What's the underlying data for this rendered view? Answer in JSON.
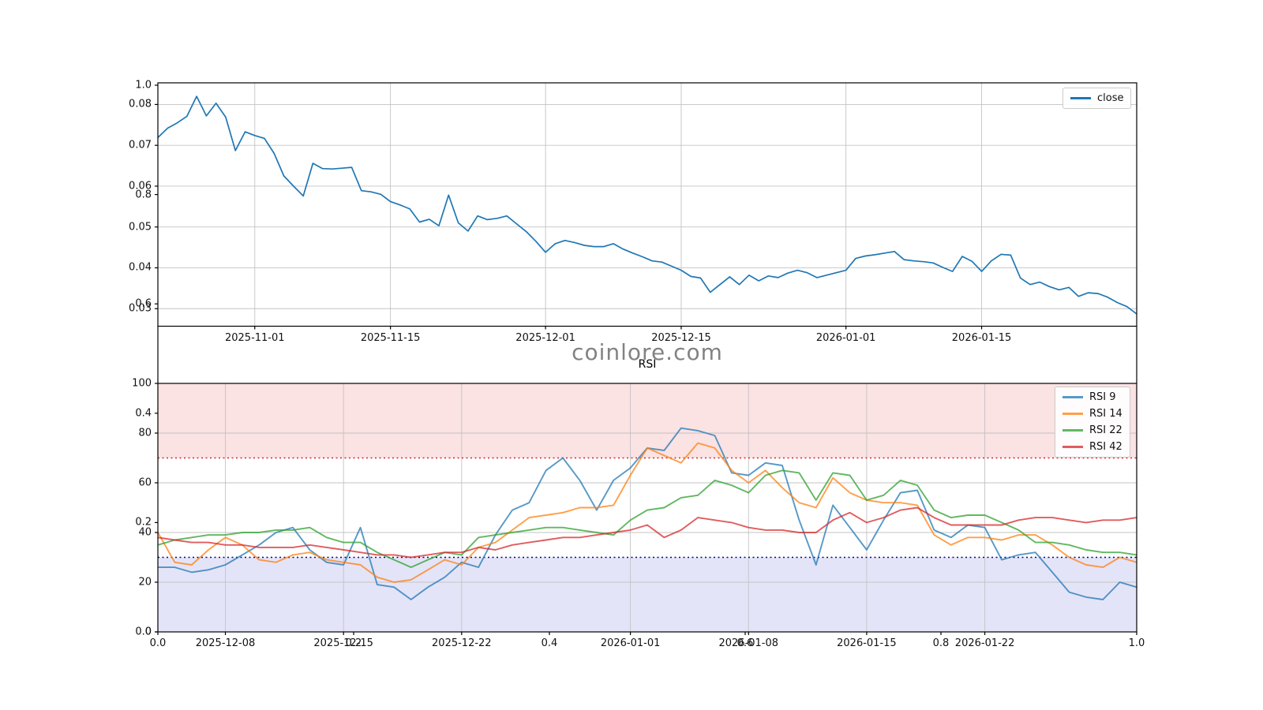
{
  "watermark": {
    "text": "coinlore.com"
  },
  "figure": {
    "background": "#ffffff",
    "grid_color": "#c3c3c3",
    "spine_color": "#000000",
    "overbought_band_color": "#fbe2e3",
    "oversold_band_color": "#e4e4f8",
    "overbought_line_color": "#d62728",
    "oversold_line_color": "#00008b"
  },
  "overlay_axis": {
    "xticks": [
      "0.0",
      "0.2",
      "0.4",
      "0.6",
      "0.8",
      "1.0"
    ],
    "yticks": [
      "1.0",
      "0.8",
      "0.6",
      "0.4",
      "0.2",
      "0.0"
    ]
  },
  "chart_data": [
    {
      "name": "price",
      "type": "line",
      "title": "",
      "xlabel": "",
      "ylabel": "",
      "legend_position": "upper right",
      "grid": true,
      "ylim": [
        0.0257,
        0.0853
      ],
      "ytick_values": [
        0.08,
        0.07,
        0.06,
        0.05,
        0.04,
        0.03
      ],
      "ytick_labels": [
        "0.08",
        "0.07",
        "0.06",
        "0.05",
        "0.04",
        "0.03"
      ],
      "xtick_labels": [
        "2025-11-01",
        "2025-11-15",
        "2025-12-01",
        "2025-12-15",
        "2026-01-01",
        "2026-01-15"
      ],
      "xtick_indices": [
        10,
        24,
        40,
        54,
        71,
        85
      ],
      "series": [
        {
          "name": "close",
          "color": "#1f77b4",
          "alpha": 1,
          "values": [
            0.0719,
            0.0742,
            0.0755,
            0.0771,
            0.082,
            0.0772,
            0.0803,
            0.0769,
            0.0687,
            0.0733,
            0.0724,
            0.0717,
            0.068,
            0.0625,
            0.06,
            0.0576,
            0.0656,
            0.0643,
            0.0642,
            0.0644,
            0.0646,
            0.0589,
            0.0586,
            0.058,
            0.0562,
            0.0554,
            0.0544,
            0.0512,
            0.0519,
            0.0503,
            0.0578,
            0.051,
            0.049,
            0.0527,
            0.0518,
            0.0521,
            0.0527,
            0.0508,
            0.0489,
            0.0465,
            0.0438,
            0.0459,
            0.0467,
            0.0462,
            0.0455,
            0.0452,
            0.0452,
            0.0459,
            0.0446,
            0.0436,
            0.0427,
            0.0417,
            0.0414,
            0.0404,
            0.0394,
            0.0379,
            0.0375,
            0.034,
            0.0359,
            0.0378,
            0.0359,
            0.0382,
            0.0368,
            0.038,
            0.0376,
            0.0387,
            0.0394,
            0.0388,
            0.0376,
            0.0382,
            0.0388,
            0.0394,
            0.0423,
            0.0429,
            0.0432,
            0.0436,
            0.044,
            0.042,
            0.0417,
            0.0415,
            0.0412,
            0.0401,
            0.0391,
            0.0428,
            0.0416,
            0.0391,
            0.0417,
            0.0433,
            0.0431,
            0.0375,
            0.0359,
            0.0365,
            0.0354,
            0.0346,
            0.0352,
            0.033,
            0.0339,
            0.0337,
            0.0328,
            0.0315,
            0.0305,
            0.0287
          ]
        }
      ]
    },
    {
      "name": "rsi",
      "type": "line",
      "title": "RSI",
      "xlabel": "",
      "ylabel": "",
      "legend_position": "upper right",
      "grid": true,
      "ylim": [
        0,
        100
      ],
      "ytick_values": [
        100,
        80,
        60,
        40,
        20,
        0
      ],
      "ytick_labels": [
        "100",
        "80",
        "60",
        "40",
        "20",
        "0"
      ],
      "xtick_labels": [
        "2025-12-08",
        "2025-12-15",
        "2025-12-22",
        "2026-01-01",
        "2026-01-08",
        "2026-01-15",
        "2026-01-22"
      ],
      "xtick_indices": [
        4,
        11,
        18,
        28,
        35,
        42,
        49
      ],
      "bands": [
        {
          "from": 70,
          "to": 100,
          "color": "#fbe2e3"
        },
        {
          "from": 0,
          "to": 30,
          "color": "#e4e4f8"
        }
      ],
      "hlines": [
        {
          "value": 70,
          "color": "#d62728",
          "style": "dotted"
        },
        {
          "value": 30,
          "color": "#00008b",
          "style": "dotted"
        }
      ],
      "series": [
        {
          "name": "RSI 9",
          "color": "#1f77b4",
          "alpha": 0.75,
          "values": [
            26,
            26,
            24,
            25,
            27,
            31,
            35,
            40,
            42,
            33,
            28,
            27,
            42,
            19,
            18,
            13,
            18,
            22,
            28,
            26,
            39,
            49,
            52,
            65,
            70,
            61,
            49,
            61,
            66,
            74,
            73,
            82,
            81,
            79,
            64,
            63,
            68,
            67,
            45,
            27,
            51,
            42,
            33,
            45,
            56,
            57,
            41,
            38,
            43,
            42,
            29,
            31,
            32,
            24,
            16,
            14,
            13,
            20,
            18
          ]
        },
        {
          "name": "RSI 14",
          "color": "#ff7f0e",
          "alpha": 0.75,
          "values": [
            40,
            28,
            27,
            33,
            38,
            35,
            29,
            28,
            31,
            32,
            29,
            28,
            27,
            22,
            20,
            21,
            25,
            29,
            27,
            34,
            36,
            41,
            46,
            47,
            48,
            50,
            50,
            51,
            63,
            74,
            71,
            68,
            76,
            74,
            65,
            60,
            65,
            58,
            52,
            50,
            62,
            56,
            53,
            52,
            52,
            51,
            39,
            35,
            38,
            38,
            37,
            39,
            39,
            35,
            30,
            27,
            26,
            30,
            28
          ]
        },
        {
          "name": "RSI 22",
          "color": "#2ca02c",
          "alpha": 0.75,
          "values": [
            35,
            37,
            38,
            39,
            39,
            40,
            40,
            41,
            41,
            42,
            38,
            36,
            36,
            32,
            29,
            26,
            29,
            32,
            31,
            38,
            39,
            40,
            41,
            42,
            42,
            41,
            40,
            39,
            45,
            49,
            50,
            54,
            55,
            61,
            59,
            56,
            63,
            65,
            64,
            53,
            64,
            63,
            53,
            55,
            61,
            59,
            49,
            46,
            47,
            47,
            44,
            41,
            36,
            36,
            35,
            33,
            32,
            32,
            31
          ]
        },
        {
          "name": "RSI 42",
          "color": "#d62728",
          "alpha": 0.75,
          "values": [
            38,
            37,
            36,
            36,
            35,
            35,
            34,
            34,
            34,
            35,
            34,
            33,
            32,
            31,
            31,
            30,
            31,
            32,
            32,
            34,
            33,
            35,
            36,
            37,
            38,
            38,
            39,
            40,
            41,
            43,
            38,
            41,
            46,
            45,
            44,
            42,
            41,
            41,
            40,
            40,
            45,
            48,
            44,
            46,
            49,
            50,
            46,
            43,
            43,
            43,
            43,
            45,
            46,
            46,
            45,
            44,
            45,
            45,
            46
          ]
        }
      ]
    }
  ]
}
